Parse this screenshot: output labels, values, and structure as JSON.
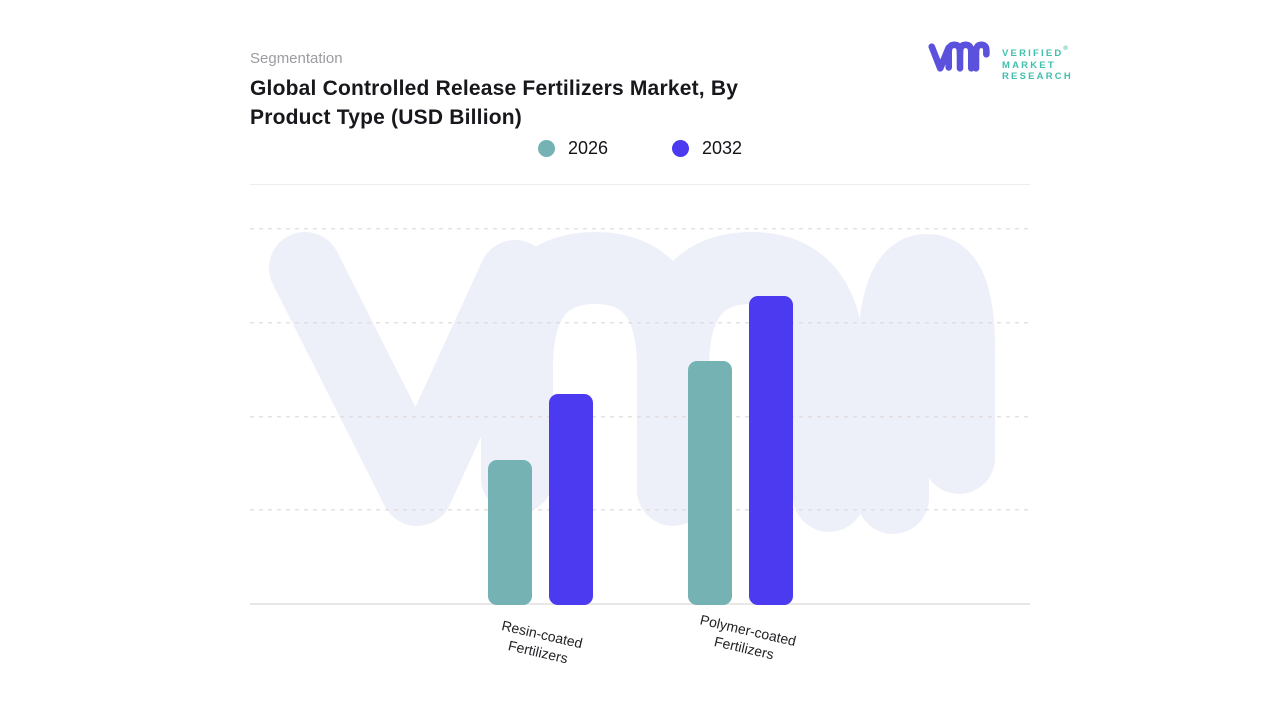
{
  "header": {
    "eyebrow": "Segmentation",
    "title_line1": "Global Controlled Release Fertilizers Market, By",
    "title_line2": "Product Type (USD Billion)"
  },
  "brand": {
    "wordmark_lines": [
      "VERIFIED",
      "MARKET",
      "RESEARCH"
    ],
    "registered_mark": "®",
    "mark_color": "#5b51dc",
    "wordmark_color": "#3fbfae"
  },
  "legend": {
    "items": [
      {
        "label": "2026",
        "color": "#74b2b4"
      },
      {
        "label": "2032",
        "color": "#4b3af0"
      }
    ]
  },
  "xaxis": {
    "labels": [
      {
        "line1": "Resin-coated",
        "line2": "Fertilizers"
      },
      {
        "line1": "Polymer-coated",
        "line2": "Fertilizers"
      }
    ]
  },
  "chart_data": {
    "type": "bar",
    "title": "Global Controlled Release Fertilizers Market, By Product Type (USD Billion)",
    "categories": [
      "Resin-coated Fertilizers",
      "Polymer-coated Fertilizers"
    ],
    "series": [
      {
        "name": "2026",
        "color": "#74b2b4",
        "values": [
          1.55,
          2.6
        ]
      },
      {
        "name": "2032",
        "color": "#4b3af0",
        "values": [
          2.25,
          3.3
        ]
      }
    ],
    "xlabel": "",
    "ylabel": "",
    "ylim": [
      0,
      4
    ],
    "y_tick_labels_visible": false,
    "value_note": "y-axis has no printed labels; values estimated in gridline units",
    "grid": "horizontal dashed",
    "legend_position": "top center"
  },
  "colors": {
    "watermark": "#eef0f9",
    "axis_line": "#e8e6e6",
    "gridline": "#ddd5d5"
  }
}
